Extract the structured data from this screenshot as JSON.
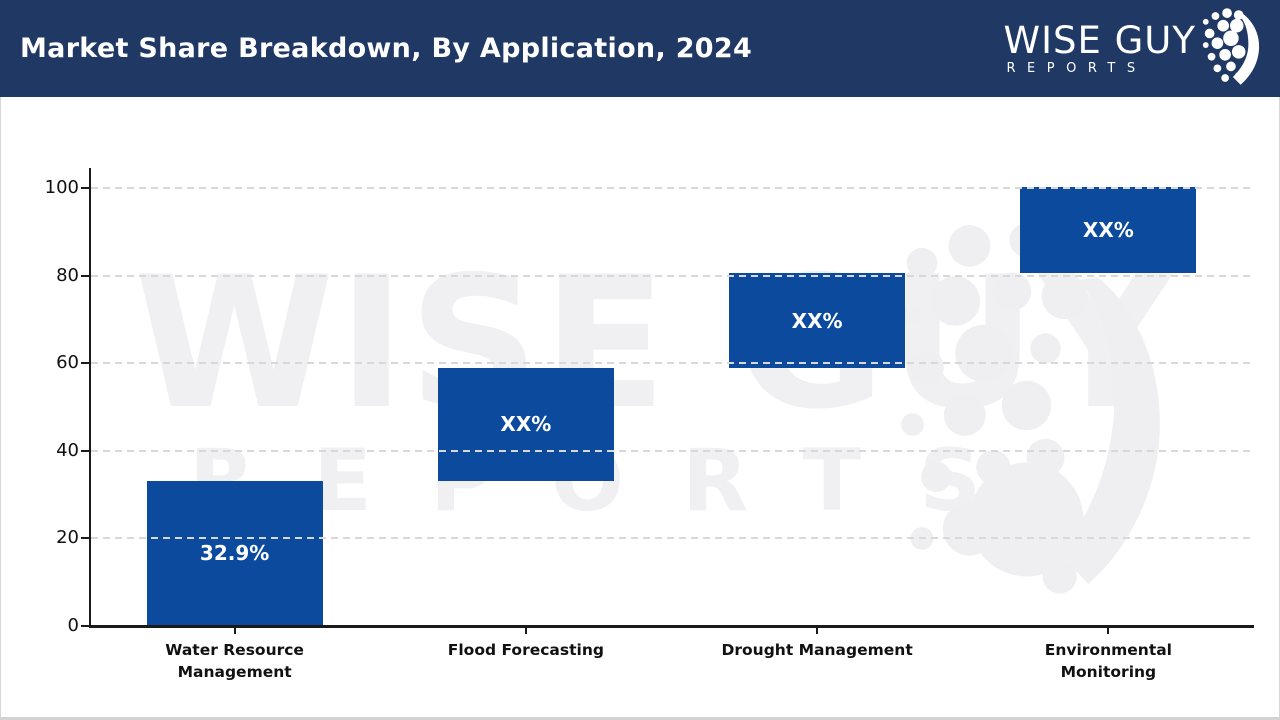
{
  "header": {
    "title": "Market Share Breakdown, By Application, 2024",
    "logo": {
      "name": "WISE GUY",
      "sub": "REPORTS"
    }
  },
  "watermark": {
    "big": "WISE GUY",
    "sub": "REPORTS"
  },
  "chart_data": {
    "type": "bar",
    "subtype": "waterfall",
    "title": "Market Share Breakdown, By Application, 2024",
    "categories": [
      "Water Resource Management",
      "Flood Forecasting",
      "Drought Management",
      "Environmental Monitoring"
    ],
    "segments": [
      {
        "category": "Water Resource Management",
        "start": 0,
        "end": 32.9,
        "label": "32.9%"
      },
      {
        "category": "Flood Forecasting",
        "start": 32.9,
        "end": 58.7,
        "label": "XX%"
      },
      {
        "category": "Drought Management",
        "start": 58.7,
        "end": 80.3,
        "label": "XX%"
      },
      {
        "category": "Environmental Monitoring",
        "start": 80.3,
        "end": 100,
        "label": "XX%"
      }
    ],
    "yticks": [
      0,
      20,
      40,
      60,
      80,
      100
    ],
    "ylim": [
      0,
      104.5
    ],
    "xlabel": "",
    "ylabel": "",
    "legend": null,
    "grid": {
      "horizontal": true,
      "style": "dashed"
    },
    "bar_color": "#0c4a9d",
    "bar_label_color": "#ffffff"
  },
  "colors": {
    "header_bg": "#203864",
    "bar": "#0c4a9d",
    "grid": "#d8d8d8",
    "axis": "#1a1a1a",
    "watermark": "#f0f0f2",
    "page_bg": "#ffffff"
  }
}
